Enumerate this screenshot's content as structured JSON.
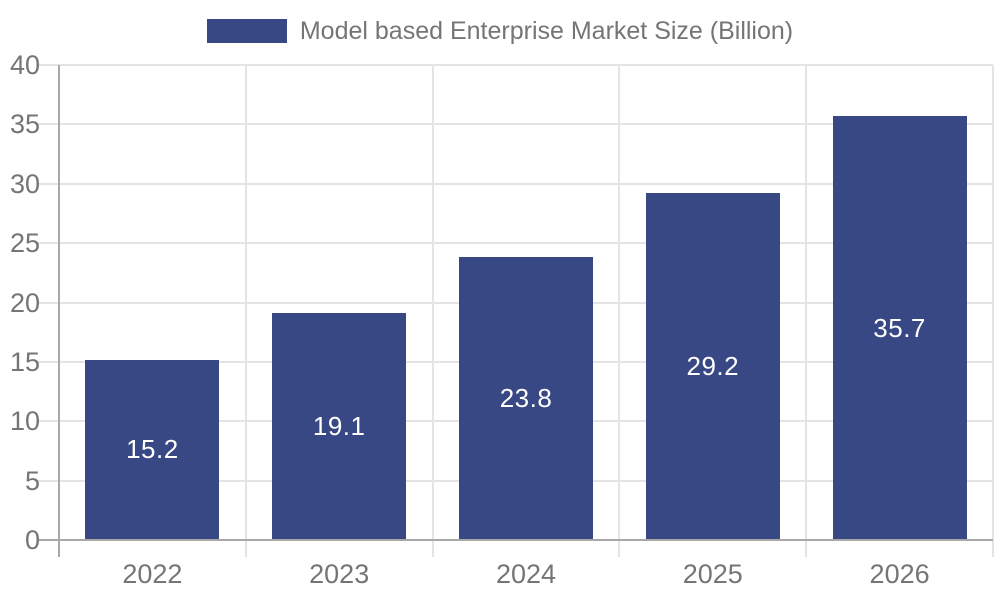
{
  "chart_data": {
    "type": "bar",
    "title": "Model based Enterprise Market Size (Billion)",
    "legend_label": "Model based Enterprise Market Size (Billion)",
    "legend_position": "top-center",
    "categories": [
      "2022",
      "2023",
      "2024",
      "2025",
      "2026"
    ],
    "values": [
      15.2,
      19.1,
      23.8,
      29.2,
      35.7
    ],
    "series": [
      {
        "name": "Model based Enterprise Market Size (Billion)",
        "values": [
          15.2,
          19.1,
          23.8,
          29.2,
          35.7
        ]
      }
    ],
    "xlabel": "",
    "ylabel": "",
    "ylim": [
      0,
      40
    ],
    "yticks": [
      0,
      5,
      10,
      15,
      20,
      25,
      30,
      35,
      40
    ],
    "grid": true,
    "value_labels_inside_bars": true,
    "colors": {
      "bar": "#374885",
      "value_label": "#ffffff",
      "axis_line": "#a8a8a8",
      "grid_line": "#e4e4e4",
      "tick_label": "#757575",
      "legend_text": "#757575",
      "background": "#ffffff"
    }
  }
}
